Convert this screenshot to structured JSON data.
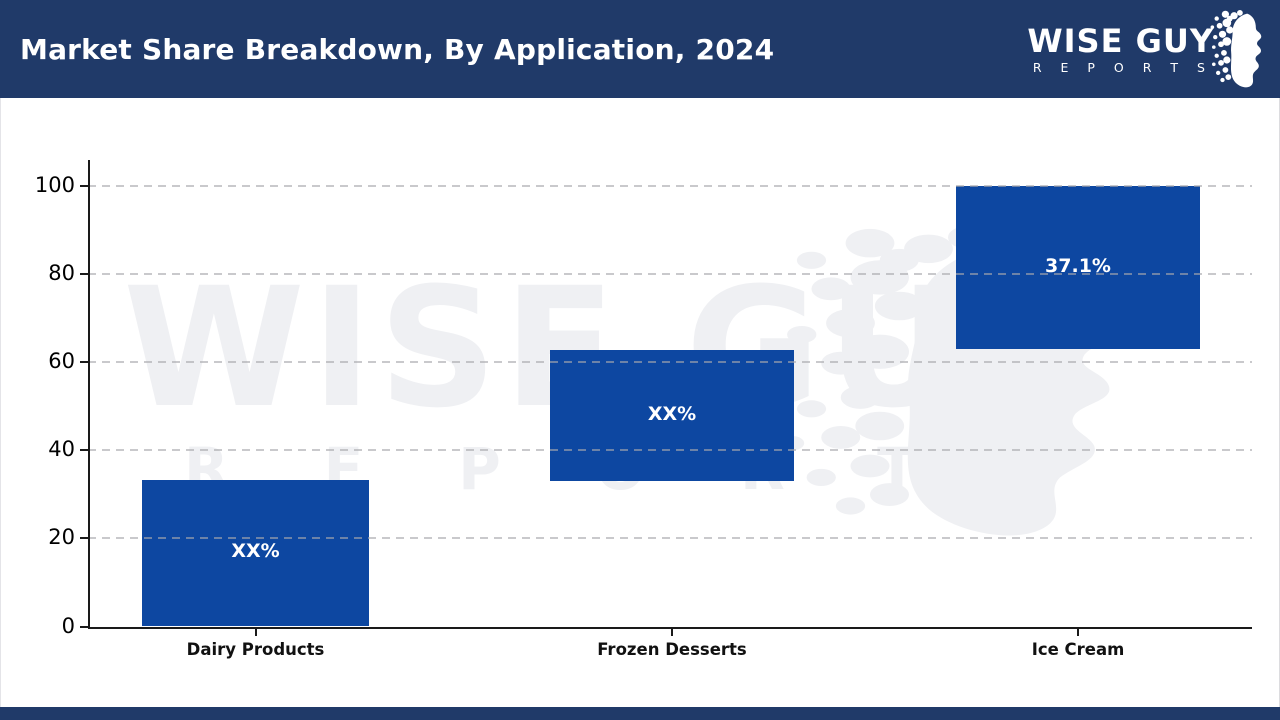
{
  "header": {
    "title": "Market Share Breakdown, By Application, 2024"
  },
  "logo": {
    "line1": "WISE GUY",
    "line2": "R E P O R T S"
  },
  "watermark": {
    "line1": "WISE GUY",
    "line2": "REPORTS"
  },
  "colors": {
    "header_navy": "#203a69",
    "bar_blue": "#0d47a1",
    "grid_gray": "#d4d4d4",
    "watermark_gray": "#eff0f3",
    "label_white": "#ffffff"
  },
  "chart_data": {
    "type": "bar",
    "variant": "floating_segment_waterfall",
    "title": "Market Share Breakdown, By Application, 2024",
    "categories": [
      "Dairy Products",
      "Frozen Desserts",
      "Ice Cream"
    ],
    "segments": [
      {
        "category": "Dairy Products",
        "start": 0,
        "end": 33.3,
        "label": "XX%"
      },
      {
        "category": "Frozen Desserts",
        "start": 33.0,
        "end": 62.8,
        "label": "XX%"
      },
      {
        "category": "Ice Cream",
        "start": 62.9,
        "end": 100,
        "label": "37.1%"
      }
    ],
    "ylim": [
      0,
      100
    ],
    "yticks": [
      0,
      20,
      40,
      60,
      80,
      100
    ],
    "grid": "horizontal-dashed",
    "legend": "none",
    "xlabel": "",
    "ylabel": ""
  }
}
